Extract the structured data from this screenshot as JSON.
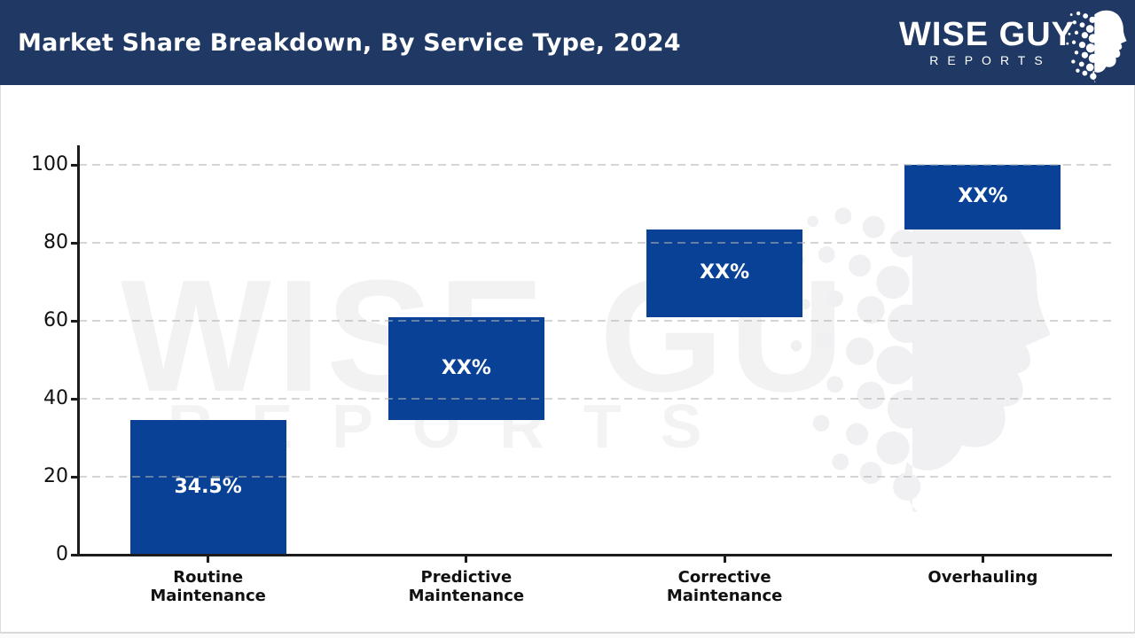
{
  "header": {
    "title": "Market Share Breakdown, By Service Type, 2024",
    "logo": {
      "line1": "WISE GUY",
      "line2": "REPORTS"
    }
  },
  "watermark": {
    "line1": "WISE GU",
    "line2": "REPORTS"
  },
  "colors": {
    "header_bg": "#1f3864",
    "bar": "#084196",
    "axis": "#1c1c1c",
    "tick_label": "#111111",
    "grid": "#d9d9d9",
    "bar_label": "#ffffff",
    "watermark": "#f2f2f3",
    "panel_border": "#dcdcdc"
  },
  "chart_data": {
    "type": "bar",
    "subtype": "waterfall",
    "title": "Market Share Breakdown, By Service Type, 2024",
    "xlabel": "",
    "ylabel": "",
    "ylim": [
      0,
      105
    ],
    "yticks": [
      0,
      20,
      40,
      60,
      80,
      100
    ],
    "grid": "horizontal-dashed",
    "legend": "none",
    "categories": [
      "Routine\nMaintenance",
      "Predictive\nMaintenance",
      "Corrective\nMaintenance",
      "Overhauling"
    ],
    "segments": [
      {
        "category": "Routine Maintenance",
        "start": 0,
        "end": 34.5,
        "value": 34.5,
        "label": "34.5%"
      },
      {
        "category": "Predictive Maintenance",
        "start": 34.5,
        "end": 61,
        "value": 26.5,
        "label": "XX%"
      },
      {
        "category": "Corrective Maintenance",
        "start": 61,
        "end": 83.5,
        "value": 22.5,
        "label": "XX%"
      },
      {
        "category": "Overhauling",
        "start": 83.5,
        "end": 100,
        "value": 16.5,
        "label": "XX%"
      }
    ]
  }
}
